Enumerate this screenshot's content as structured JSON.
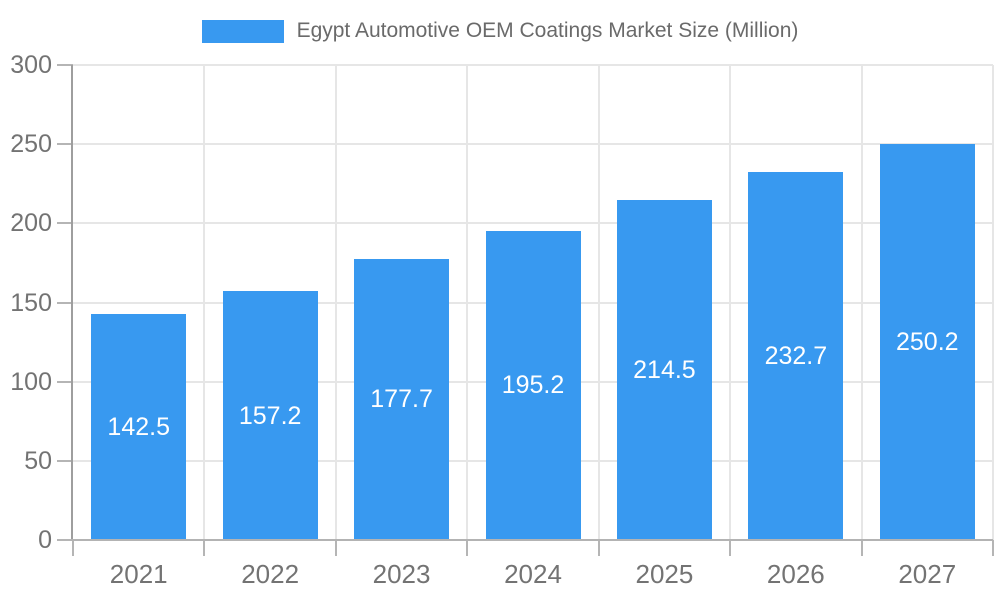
{
  "chart_data": {
    "type": "bar",
    "title": "Egypt Automotive OEM Coatings Market Size (Million)",
    "categories": [
      "2021",
      "2022",
      "2023",
      "2024",
      "2025",
      "2026",
      "2027"
    ],
    "values": [
      142.5,
      157.2,
      177.7,
      195.2,
      214.5,
      232.7,
      250.2
    ],
    "series": [
      {
        "name": "Egypt Automotive OEM Coatings Market Size (Million)",
        "values": [
          142.5,
          157.2,
          177.7,
          195.2,
          214.5,
          232.7,
          250.2
        ]
      }
    ],
    "xlabel": "",
    "ylabel": "",
    "ylim": [
      0,
      300
    ],
    "yticks": [
      0,
      50,
      100,
      150,
      200,
      250,
      300
    ],
    "grid": true,
    "legend_position": "top-center",
    "bar_labels_visible": true,
    "colors": {
      "bar": "#3899f0",
      "grid": "#e6e6e6",
      "axis_left": "#9e9e9e",
      "axis_bottom": "#b3b3b3",
      "tick": "#b5b5b5",
      "axis_label_text": "#737373",
      "legend_text": "#6a6a6a",
      "bar_label_text": "#ffffff",
      "background": "#ffffff"
    }
  }
}
